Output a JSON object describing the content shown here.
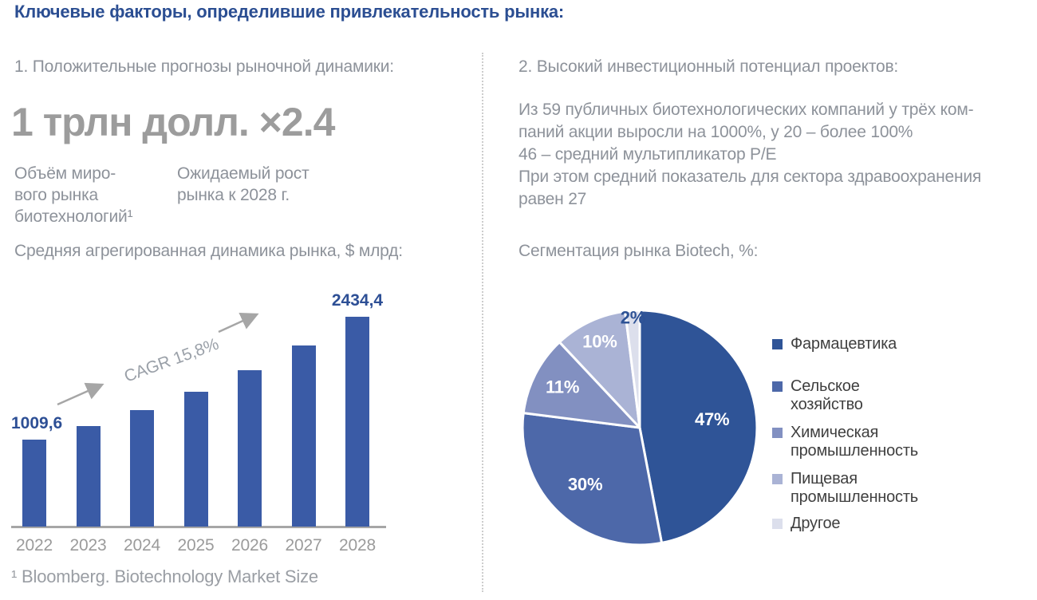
{
  "header": {
    "title": "Ключевые факторы, определившие привлекательность рынка:"
  },
  "left": {
    "section_heading": "1. Положительные прогнозы рыночной динамики:",
    "headline_stat": "1 трлн долл. ×2.4",
    "stat_caption_left": "Объём миро-\nвого рынка\nбиотехнологий¹",
    "stat_caption_right": "Ожидаемый рост\nрынка к 2028 г.",
    "chart_caption": "Средняя агрегированная динамика рынка, $ млрд:",
    "footnote": "¹ Bloomberg. Biotechnology Market Size"
  },
  "right": {
    "section_heading": "2. Высокий инвестиционный потенциал проектов:",
    "paragraph": "Из 59 публичных биотехнологических компаний у трёх ком-\nпаний акции выросли на 1000%, у 20 – более 100%\n46 – средний мультипликатор P/E\nПри этом средний показатель для сектора здравоохранения\nравен 27",
    "chart_caption": "Сегментация рынка Biotech, %:"
  },
  "chart_data": [
    {
      "type": "bar",
      "title": "Средняя агрегированная динамика рынка, $ млрд",
      "categories": [
        "2022",
        "2023",
        "2024",
        "2025",
        "2026",
        "2027",
        "2028"
      ],
      "values": [
        1009.6,
        1169.1,
        1353.8,
        1567.7,
        1815.4,
        2102.3,
        2434.4
      ],
      "value_labels": [
        {
          "category": "2022",
          "text": "1009,6"
        },
        {
          "category": "2028",
          "text": "2434,4"
        }
      ],
      "annotation": "CAGR 15,8%",
      "bar_color": "#3A5BA6",
      "xlabel": "",
      "ylabel": "$ млрд",
      "ylim": [
        0,
        2500
      ],
      "grid": false
    },
    {
      "type": "pie",
      "title": "Сегментация рынка Biotech, %",
      "start_angle_deg": 0,
      "direction": "clockwise",
      "legend_position": "right",
      "slices": [
        {
          "label": "Фармацевтика",
          "value": 47,
          "pct_label": "47%",
          "color": "#2F5497",
          "pct_label_color": "#FFFFFF"
        },
        {
          "label": "Сельское хозяйство",
          "value": 30,
          "pct_label": "30%",
          "color": "#4D68A9",
          "pct_label_color": "#FFFFFF"
        },
        {
          "label": "Химическая промышленность",
          "value": 11,
          "pct_label": "11%",
          "color": "#8290C1",
          "pct_label_color": "#FFFFFF"
        },
        {
          "label": "Пищевая промышленность",
          "value": 10,
          "pct_label": "10%",
          "color": "#AAB3D5",
          "pct_label_color": "#FFFFFF"
        },
        {
          "label": "Другое",
          "value": 2,
          "pct_label": "2%",
          "color": "#DCDFEC",
          "pct_label_color": "#2D5295"
        }
      ]
    }
  ],
  "colors": {
    "title_blue": "#2B4E92",
    "data_label_blue": "#2D4F95",
    "bar_blue": "#3A5BA6",
    "body_gray": "#8D929A",
    "axis_gray": "#A6A6A6"
  }
}
